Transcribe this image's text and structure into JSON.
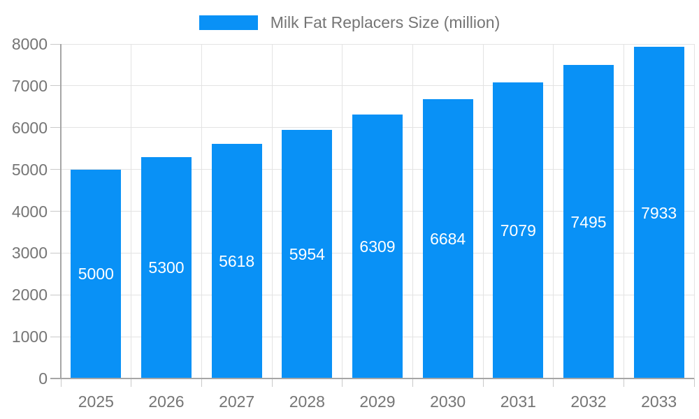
{
  "chart": {
    "legend_label": "Milk Fat Replacers Size (million)"
  },
  "chart_data": {
    "type": "bar",
    "title": "Milk Fat Replacers Size (million)",
    "categories": [
      "2025",
      "2026",
      "2027",
      "2028",
      "2029",
      "2030",
      "2031",
      "2032",
      "2033"
    ],
    "values": [
      5000,
      5300,
      5618,
      5954,
      6309,
      6684,
      7079,
      7495,
      7933
    ],
    "xlabel": "",
    "ylabel": "",
    "ylim": [
      0,
      8000
    ],
    "ytick_step": 1000,
    "grid": true,
    "legend_position": "top",
    "bar_labels_inside": true,
    "colors": {
      "bar": "#0991f6",
      "bar_label": "#ffffff",
      "grid": "#e3e3e3",
      "axis": "#a6a6a6",
      "tick": "#c9c9c9",
      "text": "#757575",
      "background": "#ffffff"
    }
  }
}
